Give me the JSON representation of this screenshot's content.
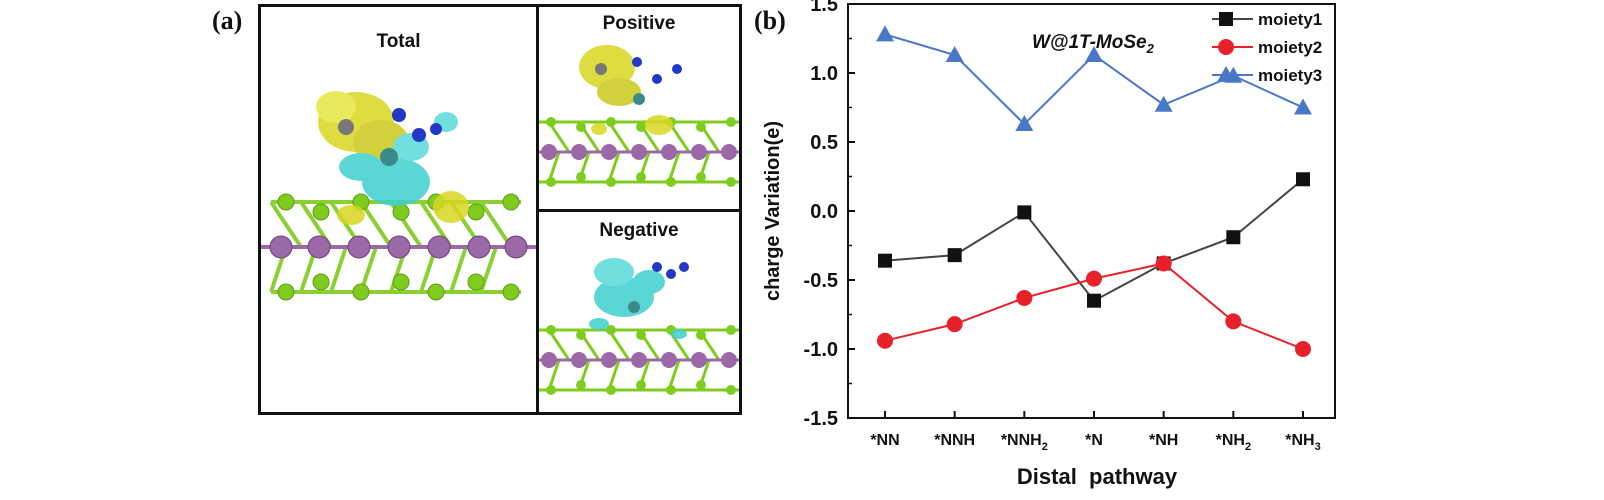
{
  "figure": {
    "panel_a_label": "(a)",
    "panel_b_label": "(b)",
    "panel_a": {
      "total_label": "Total",
      "positive_label": "Positive",
      "negative_label": "Negative"
    }
  },
  "colors": {
    "yellow_isosurface": "#d8d820",
    "cyan_isosurface": "#3fcfcf",
    "mo_atom": "#9b68a8",
    "se_atom": "#7fcc1e",
    "n_atom": "#2238c8",
    "w_atom": "#3a8a8a",
    "moiety1": "#111111",
    "moiety2": "#e8202a",
    "moiety3": "#4a78c8"
  },
  "chart_data": {
    "type": "line",
    "title": "W@1T-MoSe2",
    "title_main": "W@1T-MoSe",
    "title_sub": "2",
    "xlabel": "Distal  pathway",
    "ylabel": "charge Variation(e)",
    "ylim": [
      -1.5,
      1.5
    ],
    "yticks": [
      "-1.5",
      "-1.0",
      "-0.5",
      "0.0",
      "0.5",
      "1.0",
      "1.5"
    ],
    "categories": [
      "*NN",
      "*NNH",
      "*NNH2",
      "*N",
      "*NH",
      "*NH2",
      "*NH3"
    ],
    "category_labels": [
      {
        "main": "*NN",
        "sub": ""
      },
      {
        "main": "*NNH",
        "sub": ""
      },
      {
        "main": "*NNH",
        "sub": "2"
      },
      {
        "main": "*N",
        "sub": ""
      },
      {
        "main": "*NH",
        "sub": ""
      },
      {
        "main": "*NH",
        "sub": "2"
      },
      {
        "main": "*NH",
        "sub": "3"
      }
    ],
    "legend_position": "top-right",
    "series": [
      {
        "name": "moiety1",
        "marker": "square",
        "color": "#111111",
        "line_color": "#444444",
        "values": [
          -0.36,
          -0.32,
          -0.01,
          -0.65,
          -0.38,
          -0.19,
          0.23
        ]
      },
      {
        "name": "moiety2",
        "marker": "circle",
        "color": "#e8202a",
        "line_color": "#e8202a",
        "values": [
          -0.94,
          -0.82,
          -0.63,
          -0.49,
          -0.38,
          -0.8,
          -1.0
        ]
      },
      {
        "name": "moiety3",
        "marker": "triangle",
        "color": "#4a78c8",
        "line_color": "#4a78c8",
        "values": [
          1.28,
          1.13,
          0.63,
          1.13,
          0.77,
          0.98,
          0.75
        ]
      }
    ]
  }
}
